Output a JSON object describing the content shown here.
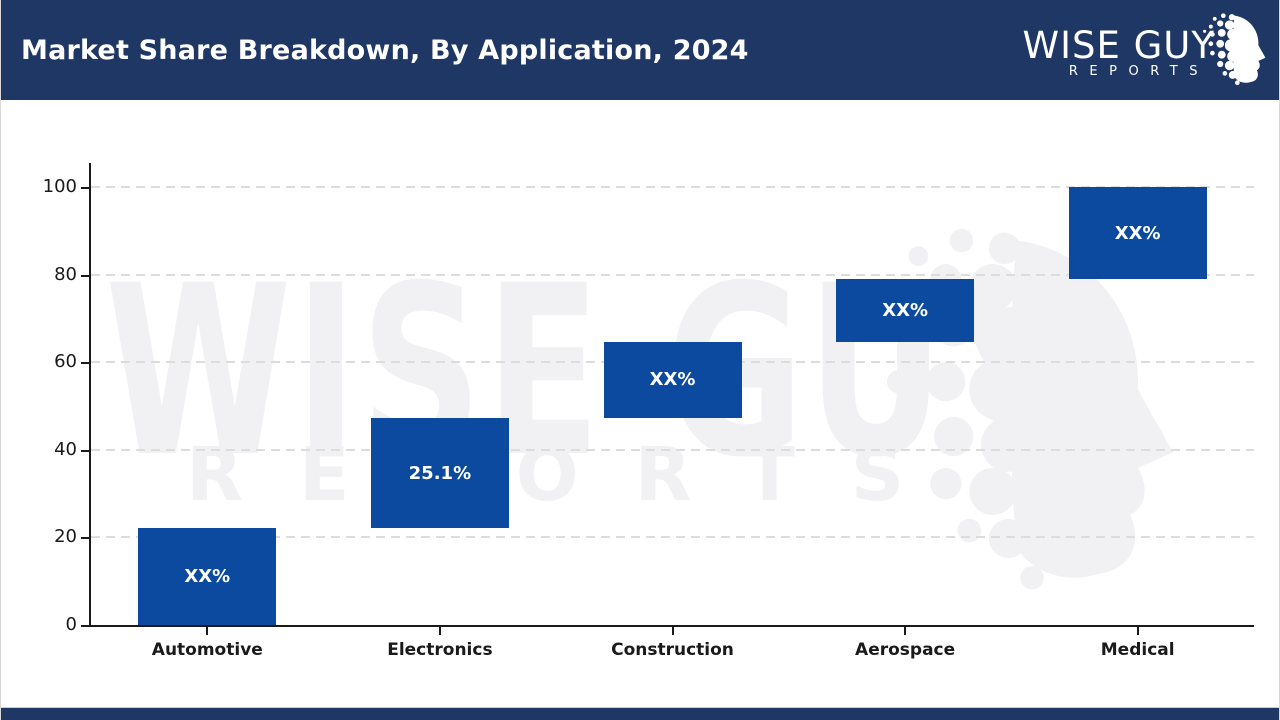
{
  "header": {
    "title": "Market Share Breakdown, By Application, 2024",
    "brand": {
      "line1": "WISE GUY",
      "line2": "REPORTS"
    }
  },
  "watermark": {
    "line1": "WISE GUY",
    "line2": "REPORTS"
  },
  "chart_data": {
    "type": "bar",
    "subtype": "waterfall-floating-bars",
    "title": "Market Share Breakdown, By Application, 2024",
    "categories": [
      "Automotive",
      "Electronics",
      "Construction",
      "Aerospace",
      "Medical"
    ],
    "segments": [
      {
        "category": "Automotive",
        "start": 0,
        "end": 22.1,
        "label": "XX%"
      },
      {
        "category": "Electronics",
        "start": 22.1,
        "end": 47.2,
        "label": "25.1%"
      },
      {
        "category": "Construction",
        "start": 47.2,
        "end": 64.7,
        "label": "XX%"
      },
      {
        "category": "Aerospace",
        "start": 64.7,
        "end": 78.9,
        "label": "XX%"
      },
      {
        "category": "Medical",
        "start": 78.9,
        "end": 100,
        "label": "XX%"
      }
    ],
    "yticks": [
      0,
      20,
      40,
      60,
      80,
      100
    ],
    "ylim": [
      0,
      105.5
    ],
    "xlabel": "",
    "ylabel": "",
    "grid": "horizontal-dashed",
    "legend": "none",
    "bar_color": "#0B4A9E",
    "bar_label_color": "#FFFFFF"
  },
  "colors": {
    "header_bg": "#1F3764",
    "footer_bg": "#1F3764",
    "axis": "#1A1A1A",
    "gridline": "#DCDCDC",
    "watermark": "#F1F1F4",
    "bar": "#0B4A9E"
  }
}
